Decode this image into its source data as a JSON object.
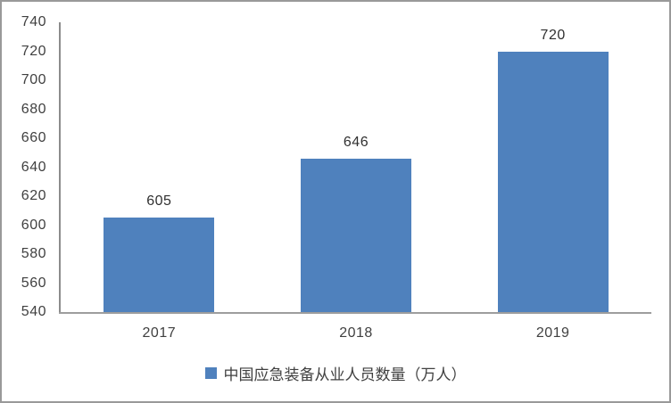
{
  "window": {
    "background": "#ffffff",
    "border_color": "#999999"
  },
  "colors": {
    "bar": "#4F81BD",
    "legend_swatch": "#4F81BD",
    "axis_line": "#9d9d9d",
    "text": "#404040"
  },
  "legend": {
    "label": "中国应急装备从业人员数量（万人）"
  },
  "chart_data": {
    "type": "bar",
    "title": "",
    "categories": [
      "2017",
      "2018",
      "2019"
    ],
    "values": [
      605,
      646,
      720
    ],
    "data_labels": [
      "605",
      "646",
      "720"
    ],
    "series": [
      {
        "name": "中国应急装备从业人员数量（万人）",
        "values": [
          605,
          646,
          720
        ]
      }
    ],
    "xlabel": "",
    "ylabel": "",
    "ylim": [
      540,
      740
    ],
    "ytick_step": 20,
    "yticks": [
      540,
      560,
      580,
      600,
      620,
      640,
      660,
      680,
      700,
      720,
      740
    ],
    "grid": false,
    "legend_position": "bottom"
  }
}
